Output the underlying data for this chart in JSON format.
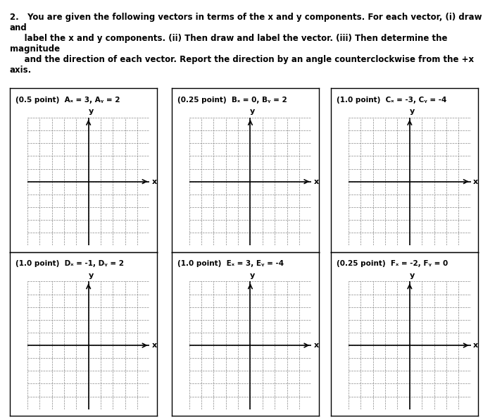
{
  "title_text": "2.   You are given the following vectors in terms of the x and y components. For each vector, (i) draw and\n     label the x and y components. (ii) Then draw and label the vector. (iii) Then determine the magnitude\n     and the direction of each vector. Report the direction by an angle counterclockwise from the +x axis.",
  "panels": [
    {
      "label": "(0.5 point)  Aₓ = 3, Aᵧ = 2",
      "col": 0,
      "row": 0
    },
    {
      "label": "(0.25 point)  Bₓ = 0, Bᵧ = 2",
      "col": 1,
      "row": 0
    },
    {
      "label": "(1.0 point)  Cₓ = -3, Cᵧ = -4",
      "col": 2,
      "row": 0
    },
    {
      "label": "(1.0 point)  Dₓ = -1, Dᵧ = 2",
      "col": 0,
      "row": 1
    },
    {
      "label": "(1.0 point)  Eₓ = 3, Eᵧ = -4",
      "col": 1,
      "row": 1
    },
    {
      "label": "(0.25 point)  Fₓ = -2, Fᵧ = 0",
      "col": 2,
      "row": 1
    }
  ],
  "grid_color": "#888888",
  "axis_color": "#000000",
  "background_color": "#ffffff",
  "border_color": "#000000",
  "grid_range": 5,
  "grid_steps": 10,
  "label_fontsize": 7.5,
  "axis_label_fontsize": 8,
  "title_fontsize": 8.5
}
